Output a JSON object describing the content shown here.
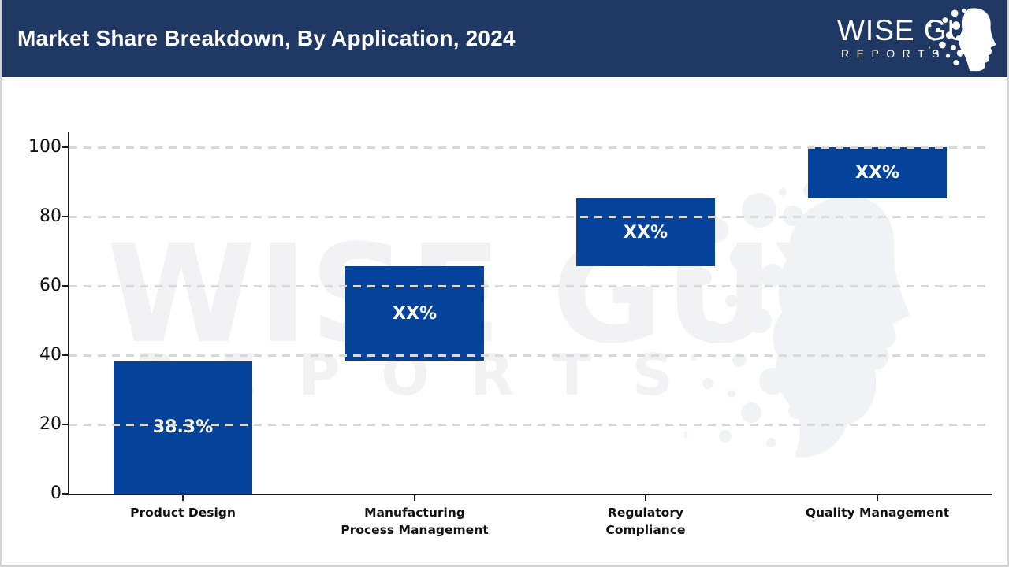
{
  "header": {
    "title": "Market Share Breakdown, By Application, 2024",
    "bg_color": "#1f3864",
    "logo": {
      "line1": "WISE GUY",
      "line2": "REPORTS"
    }
  },
  "watermark": {
    "line1": "WISE GUY",
    "line2": "REPORTS"
  },
  "chart_data": {
    "type": "bar",
    "subtype": "floating-waterfall",
    "title": "Market Share Breakdown, By Application, 2024",
    "categories": [
      "Product Design",
      "Manufacturing\nProcess Management",
      "Regulatory\nCompliance",
      "Quality Management"
    ],
    "segments": [
      {
        "category": "Product Design",
        "start": 0,
        "end": 38.3,
        "label": "38.3%"
      },
      {
        "category": "Manufacturing Process Management",
        "start": 38.3,
        "end": 65.6,
        "label": "XX%"
      },
      {
        "category": "Regulatory Compliance",
        "start": 65.6,
        "end": 85.2,
        "label": "XX%"
      },
      {
        "category": "Quality Management",
        "start": 85.2,
        "end": 100,
        "label": "XX%"
      }
    ],
    "bar_color": "#05439b",
    "value_label_color": "#ffffff",
    "ylim": [
      0,
      100
    ],
    "yticks": [
      0,
      20,
      40,
      60,
      80,
      100
    ],
    "grid": {
      "horizontal": true,
      "style": "dashed",
      "color": "#d9d9d9"
    },
    "legend": "none",
    "xlabel": "",
    "ylabel": ""
  }
}
